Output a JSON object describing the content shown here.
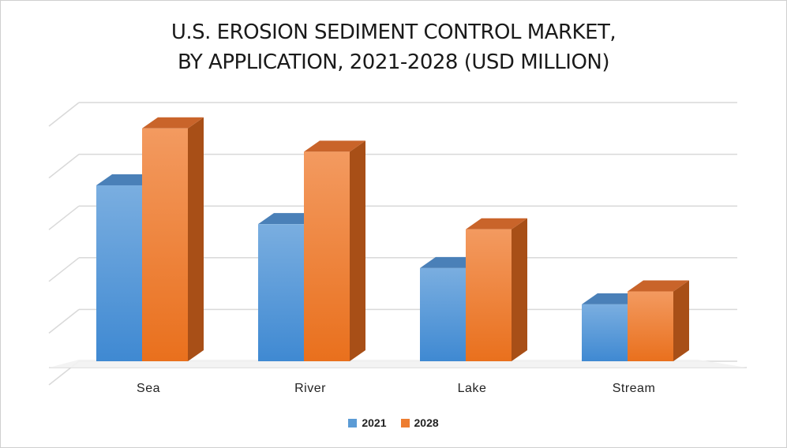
{
  "chart_data": {
    "type": "bar",
    "title_lines": [
      "U.S. EROSION SEDIMENT CONTROL MARKET,",
      "BY APPLICATION, 2021-2028 (USD MILLION)"
    ],
    "categories": [
      "Sea",
      "River",
      "Lake",
      "Stream"
    ],
    "series": [
      {
        "name": "2021",
        "values": [
          3.4,
          2.65,
          1.8,
          1.1
        ]
      },
      {
        "name": "2028",
        "values": [
          4.5,
          4.05,
          2.55,
          1.35
        ]
      }
    ],
    "ylim": [
      0,
      5
    ],
    "y_ticks_shown": false,
    "grid": true,
    "legend_position": "bottom",
    "colors": {
      "2021": "#5b9bd5",
      "2028": "#ed7d31"
    }
  }
}
